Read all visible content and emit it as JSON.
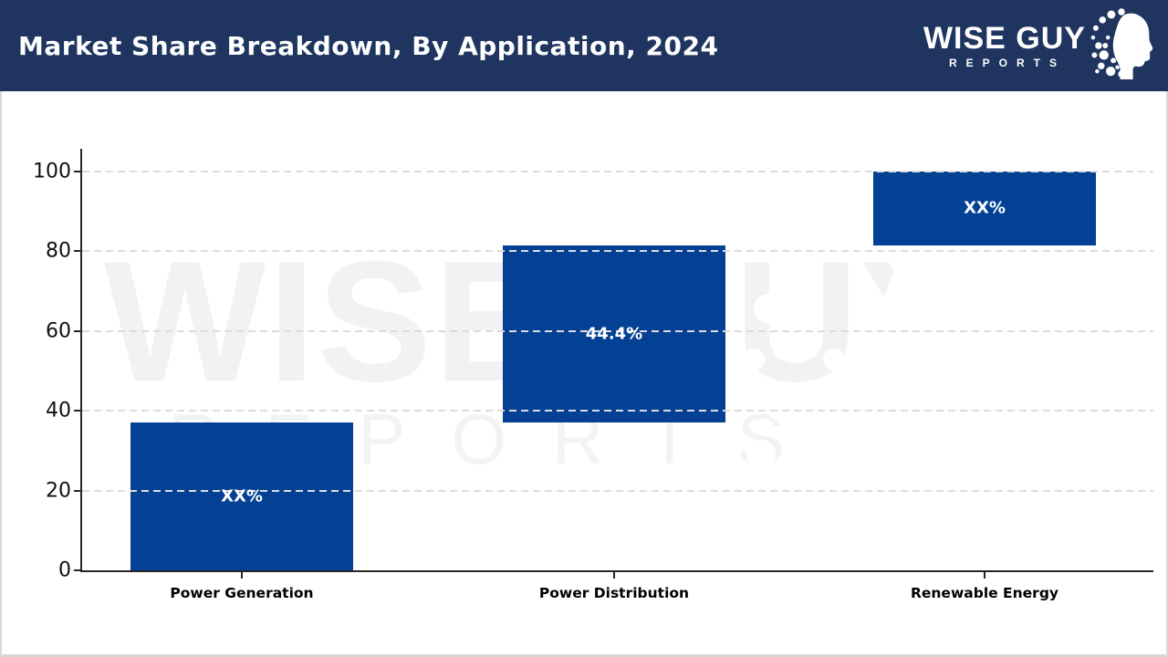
{
  "header": {
    "title": "Market Share Breakdown, By Application, 2024",
    "logo": {
      "line1": "WISE GUY",
      "line2": "REPORTS"
    }
  },
  "watermark": {
    "line1": "WISE GUY",
    "line2": "REPORTS"
  },
  "chart_data": {
    "type": "bar",
    "subtype": "waterfall-floating-bars",
    "title": "Market Share Breakdown, By Application, 2024",
    "categories": [
      "Power Generation",
      "Power Distribution",
      "Renewable Energy"
    ],
    "bars": [
      {
        "category": "Power Generation",
        "start": 0,
        "end": 37,
        "value_pct": 37,
        "label": "XX%"
      },
      {
        "category": "Power Distribution",
        "start": 37,
        "end": 81.4,
        "value_pct": 44.4,
        "label": "44.4%"
      },
      {
        "category": "Renewable Energy",
        "start": 81.4,
        "end": 100,
        "value_pct": 18.6,
        "label": "XX%"
      }
    ],
    "xlabel": "",
    "ylabel": "",
    "ylim": [
      0,
      100
    ],
    "yticks": [
      0,
      20,
      40,
      60,
      80,
      100
    ],
    "grid": "horizontal-dashed",
    "grid_above_bars": true,
    "legend": "none",
    "bar_color": "#044194",
    "bar_label_color": "#ffffff",
    "header_color": "#1f3560"
  }
}
